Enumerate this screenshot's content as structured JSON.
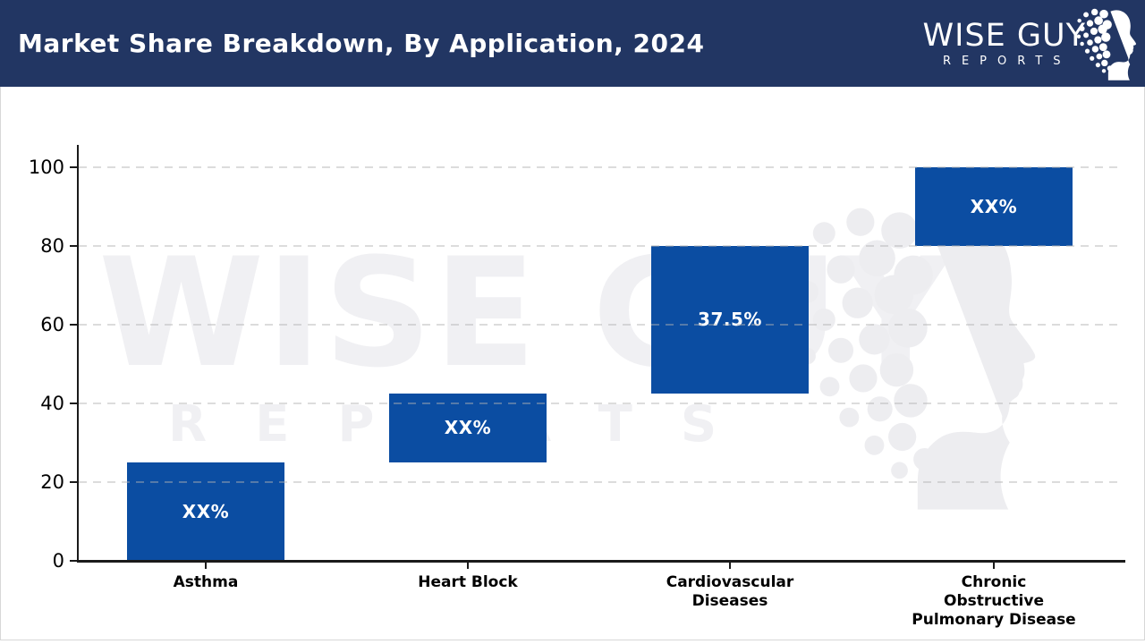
{
  "header": {
    "title": "Market Share Breakdown, By Application, 2024",
    "logo": {
      "line1": "WISE GUY",
      "line2": "REPORTS"
    }
  },
  "watermark": {
    "line1": "WISE GUY",
    "line2": "REPORTS"
  },
  "chart_data": {
    "type": "bar",
    "subtype": "waterfall",
    "title": "Market Share Breakdown, By Application, 2024",
    "categories": [
      "Asthma",
      "Heart Block",
      "Cardiovascular Diseases",
      "Chronic Obstructive Pulmonary Disease"
    ],
    "category_label_lines": [
      "Asthma",
      "Heart Block",
      "Cardiovascular\nDiseases",
      "Chronic\nObstructive\nPulmonary Disease"
    ],
    "segments": [
      {
        "category": "Asthma",
        "start": 0,
        "end": 25,
        "label": "XX%"
      },
      {
        "category": "Heart Block",
        "start": 25,
        "end": 42.5,
        "label": "XX%"
      },
      {
        "category": "Cardiovascular Diseases",
        "start": 42.5,
        "end": 80,
        "label": "37.5%"
      },
      {
        "category": "Chronic Obstructive Pulmonary Disease",
        "start": 80,
        "end": 100,
        "label": "XX%"
      }
    ],
    "y_ticks": [
      0,
      20,
      40,
      60,
      80,
      100
    ],
    "ylim": [
      0,
      105
    ],
    "xlabel": "",
    "ylabel": "",
    "grid": "dashed-horizontal",
    "legend": "none",
    "bar_color": "#0b4da2",
    "value_label_color": "#ffffff"
  },
  "colors": {
    "header_bg": "#223663",
    "bar": "#0b4da2",
    "axis": "#1a1a1a",
    "watermark_text": "#f0f0f3",
    "watermark_head": "#ededf0",
    "card_border": "#d7d7d7"
  }
}
